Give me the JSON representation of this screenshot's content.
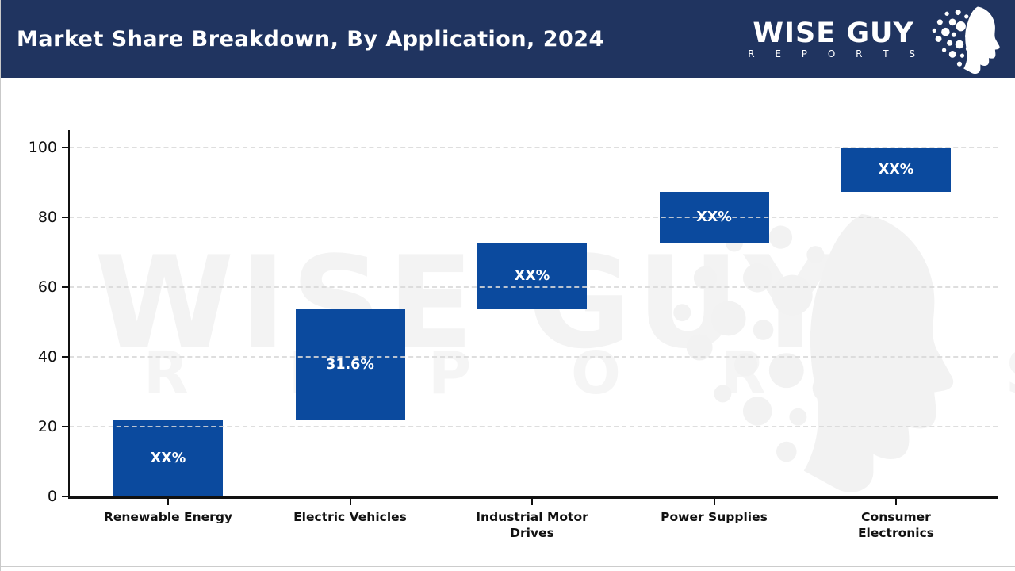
{
  "header": {
    "title": "Market Share Breakdown, By Application, 2024",
    "logo": {
      "name": "WISE GUY",
      "subtitle": "R E P O R T S"
    }
  },
  "watermark": {
    "line1": "WISE GUY",
    "line2": "REPORTS"
  },
  "chart_data": {
    "type": "bar",
    "subtype": "waterfall",
    "title": "Market Share Breakdown, By Application, 2024",
    "categories": [
      "Renewable Energy",
      "Electric Vehicles",
      "Industrial Motor Drives",
      "Power Supplies",
      "Consumer Electronics"
    ],
    "segments": [
      {
        "category": "Renewable Energy",
        "start": 0,
        "end": 22,
        "label": "XX%"
      },
      {
        "category": "Electric Vehicles",
        "start": 22,
        "end": 53.6,
        "label": "31.6%"
      },
      {
        "category": "Industrial Motor Drives",
        "start": 53.6,
        "end": 72.7,
        "label": "XX%"
      },
      {
        "category": "Power Supplies",
        "start": 72.7,
        "end": 87.3,
        "label": "XX%"
      },
      {
        "category": "Consumer Electronics",
        "start": 87.3,
        "end": 100,
        "label": "XX%"
      }
    ],
    "yticks": [
      0,
      20,
      40,
      60,
      80,
      100
    ],
    "ylim": [
      0,
      105
    ],
    "xlabel": "",
    "ylabel": "",
    "legend": "none",
    "grid": "horizontal-dashed",
    "bar_color": "#0b4a9e",
    "bar_label_color": "#ffffff",
    "grid_color": "#d9d9d9",
    "axis_color": "#111111",
    "header_bg": "#203460"
  }
}
